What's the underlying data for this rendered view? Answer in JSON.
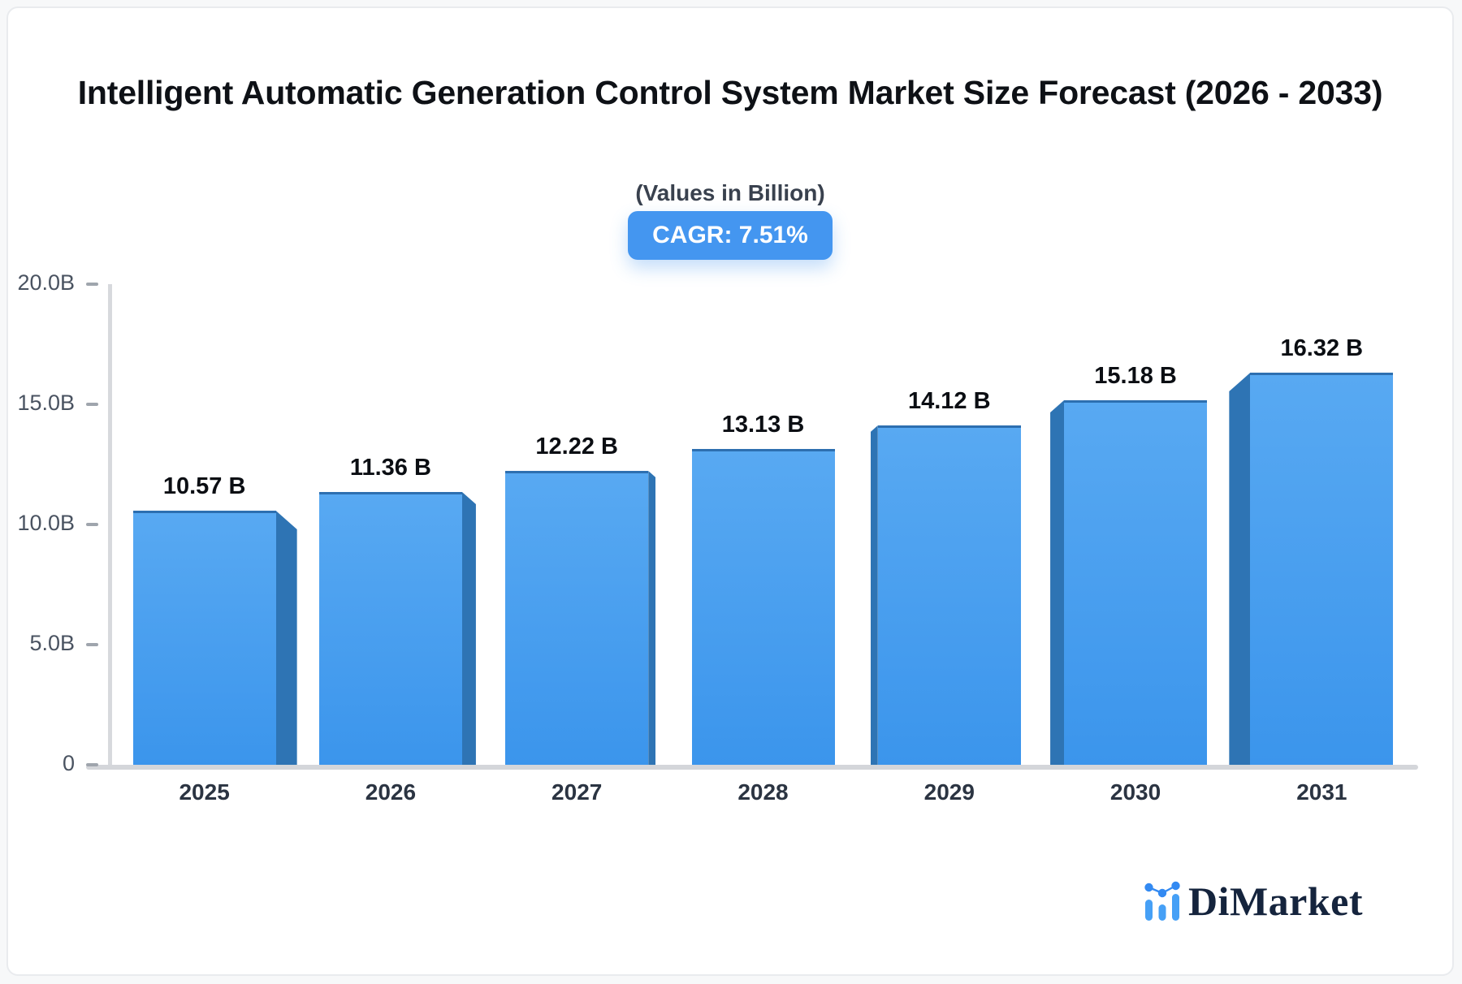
{
  "header": {
    "title": "Intelligent Automatic Generation Control System Market Size Forecast (2026 - 2033)",
    "subtitle": "(Values in Billion)",
    "cagr_badge": "CAGR: 7.51%"
  },
  "chart_data": {
    "type": "bar",
    "title": "Intelligent Automatic Generation Control System Market Size Forecast (2026 - 2033)",
    "subtitle": "(Values in Billion)",
    "cagr_label": "CAGR: 7.51%",
    "cagr_percent": 7.51,
    "unit": "Billion",
    "categories": [
      "2025",
      "2026",
      "2027",
      "2028",
      "2029",
      "2030",
      "2031"
    ],
    "values": [
      10.57,
      11.36,
      12.22,
      13.13,
      14.12,
      15.18,
      16.32
    ],
    "value_labels": [
      "10.57 B",
      "11.36 B",
      "12.22 B",
      "13.13 B",
      "14.12 B",
      "15.18 B",
      "16.32 B"
    ],
    "ylim": [
      0,
      20
    ],
    "yticks": [
      {
        "value": 20,
        "label": "20.0B"
      },
      {
        "value": 15,
        "label": "15.0B"
      },
      {
        "value": 10,
        "label": "10.0B"
      },
      {
        "value": 5,
        "label": "5.0B"
      },
      {
        "value": 0,
        "label": "0"
      }
    ],
    "xlabel": "",
    "ylabel": "",
    "grid": false,
    "legend": null,
    "bar_style": "3d-perspective",
    "colors": {
      "bar_top": "#58a9f2",
      "bar_bottom": "#3b95ec",
      "bar_side": "#2e74b4",
      "bar_edge": "#2d6fb0",
      "axis": "#d7d9dd",
      "tick_dash": "#9fa5ad",
      "y_label": "#4a5361",
      "x_label": "#2b3442",
      "value_label": "#0b0e13",
      "badge_bg": "#4496f0",
      "badge_text": "#ffffff"
    }
  },
  "footer": {
    "logo_text": "DiMarket",
    "logo_icon": "mini-bar-chart-icon",
    "logo_text_color": "#15243d",
    "logo_bar_color": "#46a0f6",
    "logo_dot_color": "#338af2"
  }
}
